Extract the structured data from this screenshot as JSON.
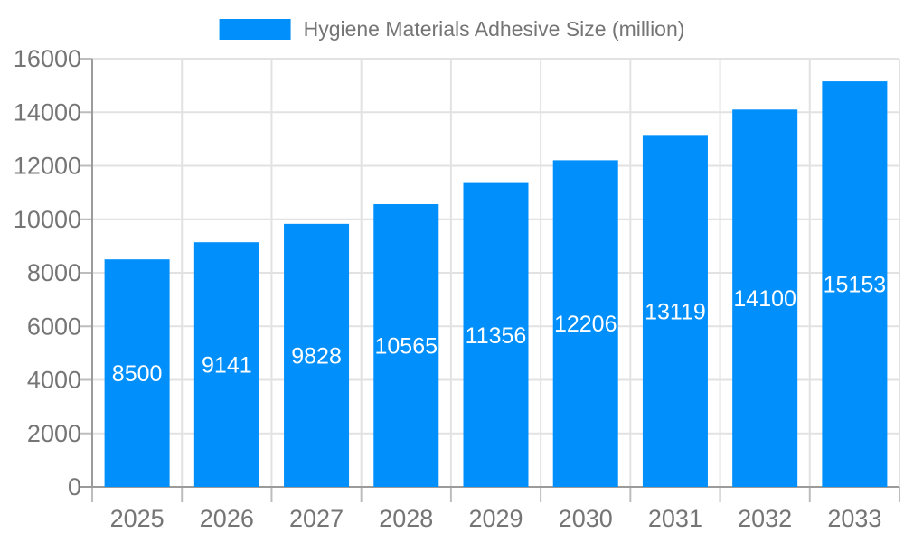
{
  "legend": {
    "label": "Hygiene Materials Adhesive Size (million)"
  },
  "colors": {
    "bar": "#008ffb",
    "bar_label": "#ffffff",
    "axis_text": "#757575",
    "legend_text": "#757575",
    "grid": "#e2e2e2",
    "axis_line": "#9b9b9b",
    "tick": "#bdbdbd",
    "background": "#ffffff"
  },
  "chart_data": {
    "type": "bar",
    "title": "Hygiene Materials Adhesive Size (million)",
    "categories": [
      "2025",
      "2026",
      "2027",
      "2028",
      "2029",
      "2030",
      "2031",
      "2032",
      "2033"
    ],
    "series": [
      {
        "name": "Hygiene Materials Adhesive Size (million)",
        "values": [
          8500,
          9141,
          9828,
          10565,
          11356,
          12206,
          13119,
          14100,
          15153
        ]
      }
    ],
    "xlabel": "",
    "ylabel": "",
    "ylim": [
      0,
      16000
    ],
    "ytick_interval": 2000,
    "grid": true,
    "legend_position": "top",
    "value_labels": "inside-middle"
  }
}
